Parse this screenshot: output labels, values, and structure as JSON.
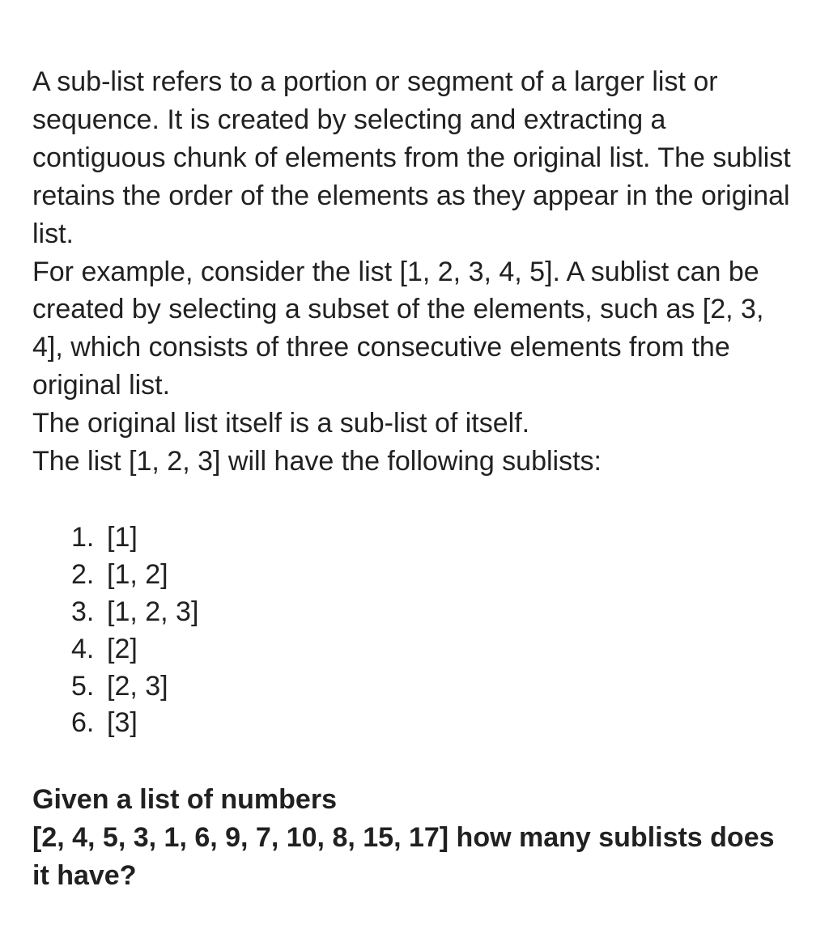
{
  "para1": "A sub-list refers to a portion or segment of a larger list or sequence. It is created by selecting and extracting a contiguous chunk of elements from the original list. The sublist retains the order of the elements as they appear in the original list.",
  "para2": "For example, consider the list [1, 2, 3, 4, 5]. A sublist can be created by selecting a subset of the elements, such as [2, 3, 4], which consists of three consecutive elements from the original list.",
  "para3": "The original list itself is a sub-list of itself.",
  "para4": "The list [1, 2, 3] will have the following sublists:",
  "sublists": [
    {
      "n": "1.",
      "v": "[1]"
    },
    {
      "n": "2.",
      "v": "[1, 2]"
    },
    {
      "n": "3.",
      "v": "[1, 2, 3]"
    },
    {
      "n": "4.",
      "v": "[2]"
    },
    {
      "n": "5.",
      "v": "[2, 3]"
    },
    {
      "n": "6.",
      "v": "[3]"
    }
  ],
  "question_line1": "Given a list of numbers",
  "question_line2": "[2, 4, 5, 3, 1, 6, 9, 7, 10, 8, 15, 17] how many sublists does it have?",
  "colors": {
    "text": "#212121",
    "background": "#ffffff"
  },
  "font": {
    "family": "Arial",
    "body_size_pt": 26,
    "line_height": 1.38,
    "question_weight": "bold"
  }
}
